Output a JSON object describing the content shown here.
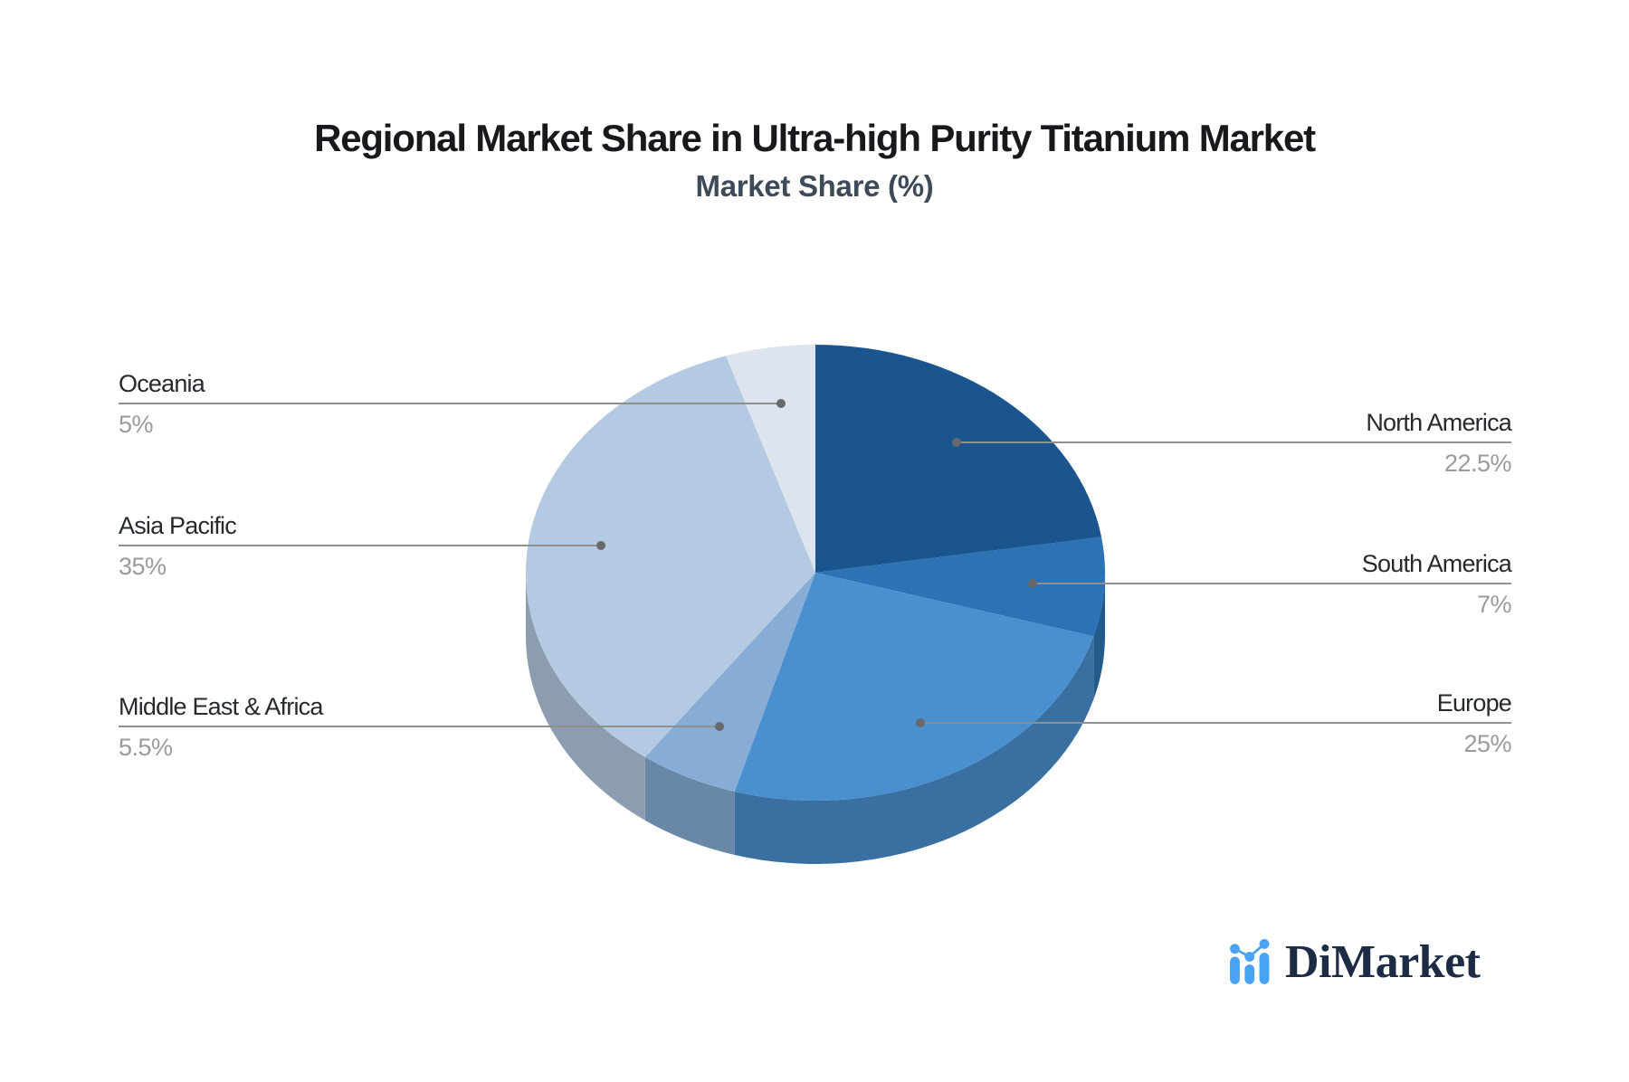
{
  "header": {
    "title": "Regional Market Share in Ultra-high Purity Titanium Market",
    "subtitle": "Market Share (%)"
  },
  "chart_data": {
    "type": "pie",
    "title": "Regional Market Share in Ultra-high Purity Titanium Market",
    "subtitle": "Market Share (%)",
    "unit": "%",
    "style_3d": true,
    "start_angle_deg": 0,
    "direction": "clockwise",
    "legend_position": "none",
    "labels": "outside-with-connectors",
    "slices": [
      {
        "label": "North America",
        "value": 22.5,
        "display": "22.5%",
        "color": "#1a5590",
        "side": "right"
      },
      {
        "label": "South America",
        "value": 7,
        "display": "7%",
        "color": "#2b73b4",
        "side": "right"
      },
      {
        "label": "Europe",
        "value": 25,
        "display": "25%",
        "color": "#4a90ce",
        "side": "right"
      },
      {
        "label": "Middle East & Africa",
        "value": 5.5,
        "display": "5.5%",
        "color": "#87add6",
        "side": "left"
      },
      {
        "label": "Asia Pacific",
        "value": 35,
        "display": "35%",
        "color": "#b4c9e2",
        "side": "left"
      },
      {
        "label": "Oceania",
        "value": 5,
        "display": "5%",
        "color": "#dde4ee",
        "side": "left"
      }
    ]
  },
  "branding": {
    "logo_text": "DiMarket",
    "logo_text_color": "#1d2b45",
    "icon_color": "#4aa3f2"
  },
  "style": {
    "background": "#ffffff",
    "title_color": "#17191d",
    "subtitle_color": "#3f4a59",
    "label_color": "#26292e",
    "value_color": "#9b9b9b",
    "connector_color": "#8f8f8f",
    "dot_color": "#67696b"
  }
}
